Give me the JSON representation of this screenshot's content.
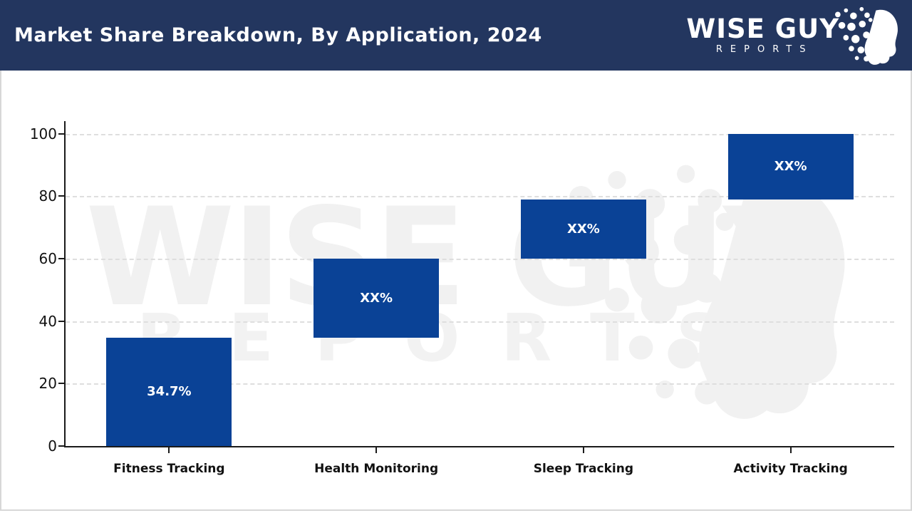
{
  "header": {
    "title": "Market Share Breakdown, By Application, 2024",
    "logo": {
      "line1": "WISE GUY",
      "line2": "REPORTS"
    }
  },
  "watermark": {
    "line1": "WISE GUY",
    "line2": "REPORTS"
  },
  "colors": {
    "header_bg": "#23365f",
    "bar": "#0a4296",
    "grid": "#dedede",
    "axis": "#1a1a1a",
    "bar_label": "#ffffff",
    "watermark": "#f1f1f1"
  },
  "chart_data": {
    "type": "bar",
    "subtype": "waterfall",
    "title": "Market Share Breakdown, By Application, 2024",
    "xlabel": "",
    "ylabel": "",
    "categories": [
      "Fitness Tracking",
      "Health Monitoring",
      "Sleep Tracking",
      "Activity Tracking"
    ],
    "series": [
      {
        "name": "Market Share",
        "starts": [
          0,
          34.7,
          60,
          79
        ],
        "ends": [
          34.7,
          60,
          79,
          100
        ]
      }
    ],
    "bar_labels": [
      "34.7%",
      "XX%",
      "XX%",
      "XX%"
    ],
    "yticks": [
      0,
      20,
      40,
      60,
      80,
      100
    ],
    "ylim": [
      0,
      104
    ],
    "grid": "horizontal-dashed",
    "legend": "none",
    "bar_color": "#0a4296"
  }
}
